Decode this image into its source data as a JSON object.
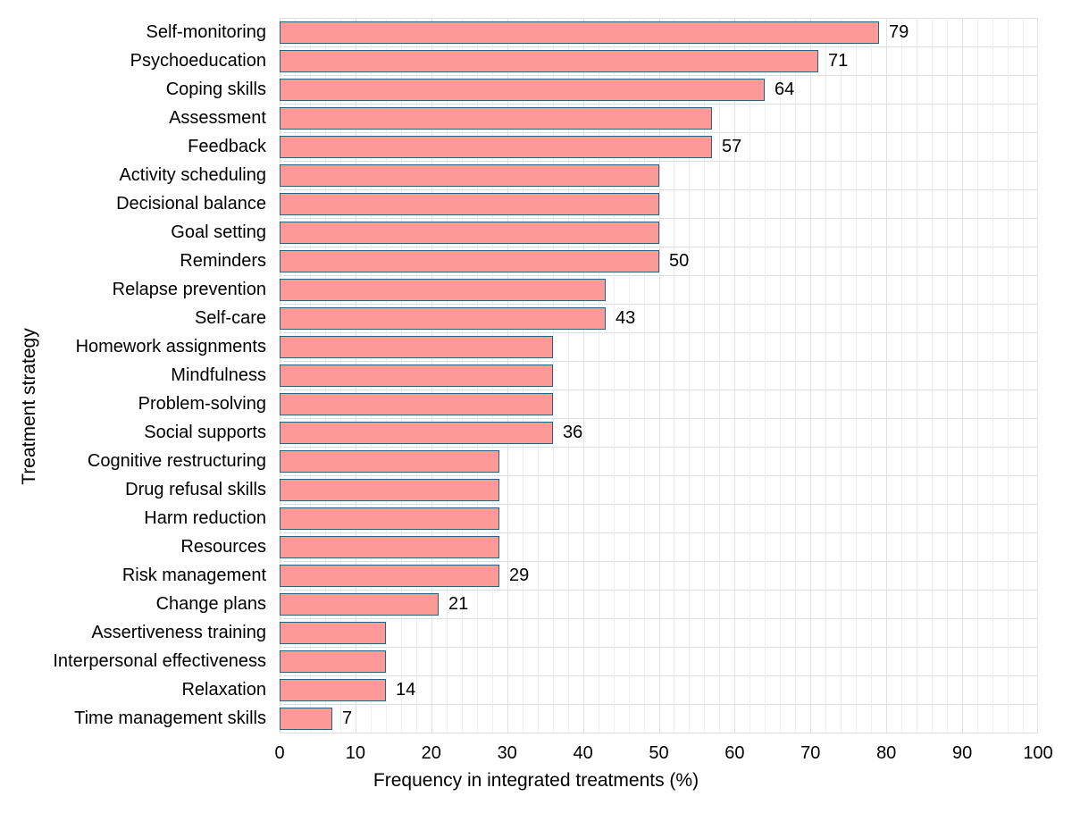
{
  "chart_data": {
    "type": "bar",
    "orientation": "horizontal",
    "xlabel": "Frequency in integrated treatments (%)",
    "ylabel": "Treatment strategy",
    "xlim": [
      0,
      100
    ],
    "x_major_ticks": [
      0,
      10,
      20,
      30,
      40,
      50,
      60,
      70,
      80,
      90,
      100
    ],
    "x_minor_step": 2,
    "grid": "on",
    "categories": [
      "Self-monitoring",
      "Psychoeducation",
      "Coping skills",
      "Assessment",
      "Feedback",
      "Activity scheduling",
      "Decisional balance",
      "Goal setting",
      "Reminders",
      "Relapse prevention",
      "Self-care",
      "Homework assignments",
      "Mindfulness",
      "Problem-solving",
      "Social supports",
      "Cognitive restructuring",
      "Drug refusal skills",
      "Harm reduction",
      "Resources",
      "Risk management",
      "Change plans",
      "Assertiveness training",
      "Interpersonal effectiveness",
      "Relaxation",
      "Time management skills"
    ],
    "values": [
      79,
      71,
      64,
      57,
      57,
      50,
      50,
      50,
      50,
      43,
      43,
      36,
      36,
      36,
      36,
      29,
      29,
      29,
      29,
      29,
      21,
      14,
      14,
      14,
      7
    ],
    "bar_labels": [
      "79",
      "71",
      "64",
      "",
      "57",
      "",
      "",
      "",
      "50",
      "",
      "43",
      "",
      "",
      "",
      "36",
      "",
      "",
      "",
      "",
      "29",
      "21",
      "",
      "",
      "14",
      "7"
    ],
    "colors": {
      "bar_fill": "#fc9a98",
      "bar_border": "#2b607f",
      "grid_row_lines": "#dcdcdc",
      "grid_major": "#e2e2e2",
      "grid_minor": "#eeeeee",
      "text": "#000000",
      "background": "#ffffff"
    }
  }
}
